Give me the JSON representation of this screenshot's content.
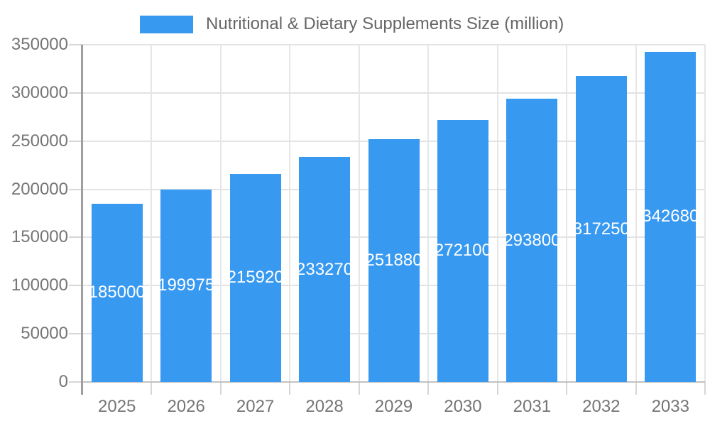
{
  "legend": {
    "label": "Nutritional & Dietary Supplements Size (million)"
  },
  "chart_data": {
    "type": "bar",
    "title": "Nutritional & Dietary Supplements Size (million)",
    "categories": [
      "2025",
      "2026",
      "2027",
      "2028",
      "2029",
      "2030",
      "2031",
      "2032",
      "2033"
    ],
    "values": [
      185000,
      199975,
      215920,
      233270,
      251880,
      272100,
      293800,
      317250,
      342680
    ],
    "bar_labels": [
      "185000",
      "199975",
      "215920",
      "233270",
      "251880",
      "272100",
      "293800",
      "317250",
      "342680"
    ],
    "xlabel": "",
    "ylabel": "",
    "ylim": [
      0,
      350000
    ],
    "y_ticks": [
      0,
      50000,
      100000,
      150000,
      200000,
      250000,
      300000,
      350000
    ],
    "y_tick_labels": [
      "0",
      "50000",
      "100000",
      "150000",
      "200000",
      "250000",
      "300000",
      "350000"
    ],
    "grid": "horizontal and vertical category boundaries",
    "legend_position": "top",
    "bar_label_position": "center-inside-white"
  },
  "colors": {
    "bar": "#3899F0",
    "bar_label": "#ffffff",
    "gridline": "#e3e3e3",
    "vertical_gridline": "#e6e6e6",
    "baseline": "#c2c2c2",
    "axis_line": "#9e9e9e",
    "tick_mark": "#d6d6d6",
    "tick_text": "#757575",
    "legend_text": "#666666",
    "background": "#ffffff"
  }
}
